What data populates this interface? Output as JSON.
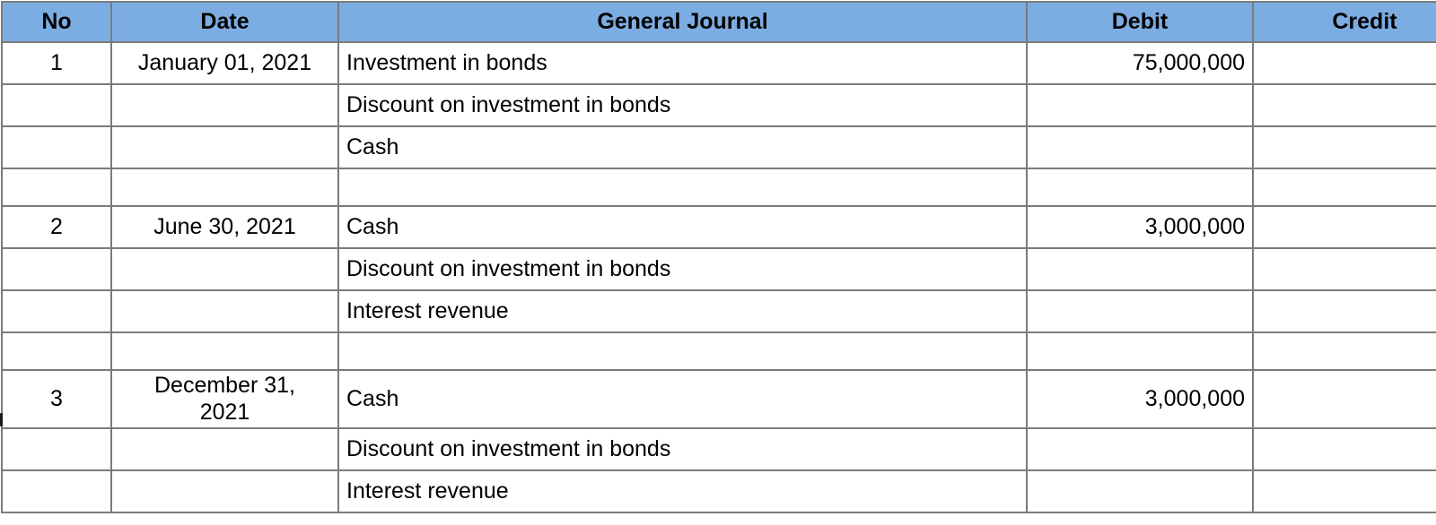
{
  "colors": {
    "header_bg": "#7cade2",
    "border": "#7b7b7b",
    "text": "#000000"
  },
  "table": {
    "columns": [
      {
        "key": "no",
        "label": "No"
      },
      {
        "key": "date",
        "label": "Date"
      },
      {
        "key": "journal",
        "label": "General Journal"
      },
      {
        "key": "debit",
        "label": "Debit"
      },
      {
        "key": "credit",
        "label": "Credit"
      }
    ],
    "rows": [
      {
        "no": "1",
        "date": "January 01, 2021",
        "journal": "Investment in bonds",
        "debit": "75,000,000",
        "credit": ""
      },
      {
        "no": "",
        "date": "",
        "journal": "Discount on investment in bonds",
        "debit": "",
        "credit": ""
      },
      {
        "no": "",
        "date": "",
        "journal": "Cash",
        "debit": "",
        "credit": ""
      },
      {
        "no": "",
        "date": "",
        "journal": "",
        "debit": "",
        "credit": ""
      },
      {
        "no": "2",
        "date": "June 30, 2021",
        "journal": "Cash",
        "debit": "3,000,000",
        "credit": ""
      },
      {
        "no": "",
        "date": "",
        "journal": "Discount on investment in bonds",
        "debit": "",
        "credit": ""
      },
      {
        "no": "",
        "date": "",
        "journal": "Interest revenue",
        "debit": "",
        "credit": ""
      },
      {
        "no": "",
        "date": "",
        "journal": "",
        "debit": "",
        "credit": ""
      },
      {
        "no": "3",
        "date": "December 31,\n2021",
        "journal": "Cash",
        "debit": "3,000,000",
        "credit": ""
      },
      {
        "no": "",
        "date": "",
        "journal": "Discount on investment in bonds",
        "debit": "",
        "credit": ""
      },
      {
        "no": "",
        "date": "",
        "journal": "Interest revenue",
        "debit": "",
        "credit": ""
      }
    ]
  }
}
